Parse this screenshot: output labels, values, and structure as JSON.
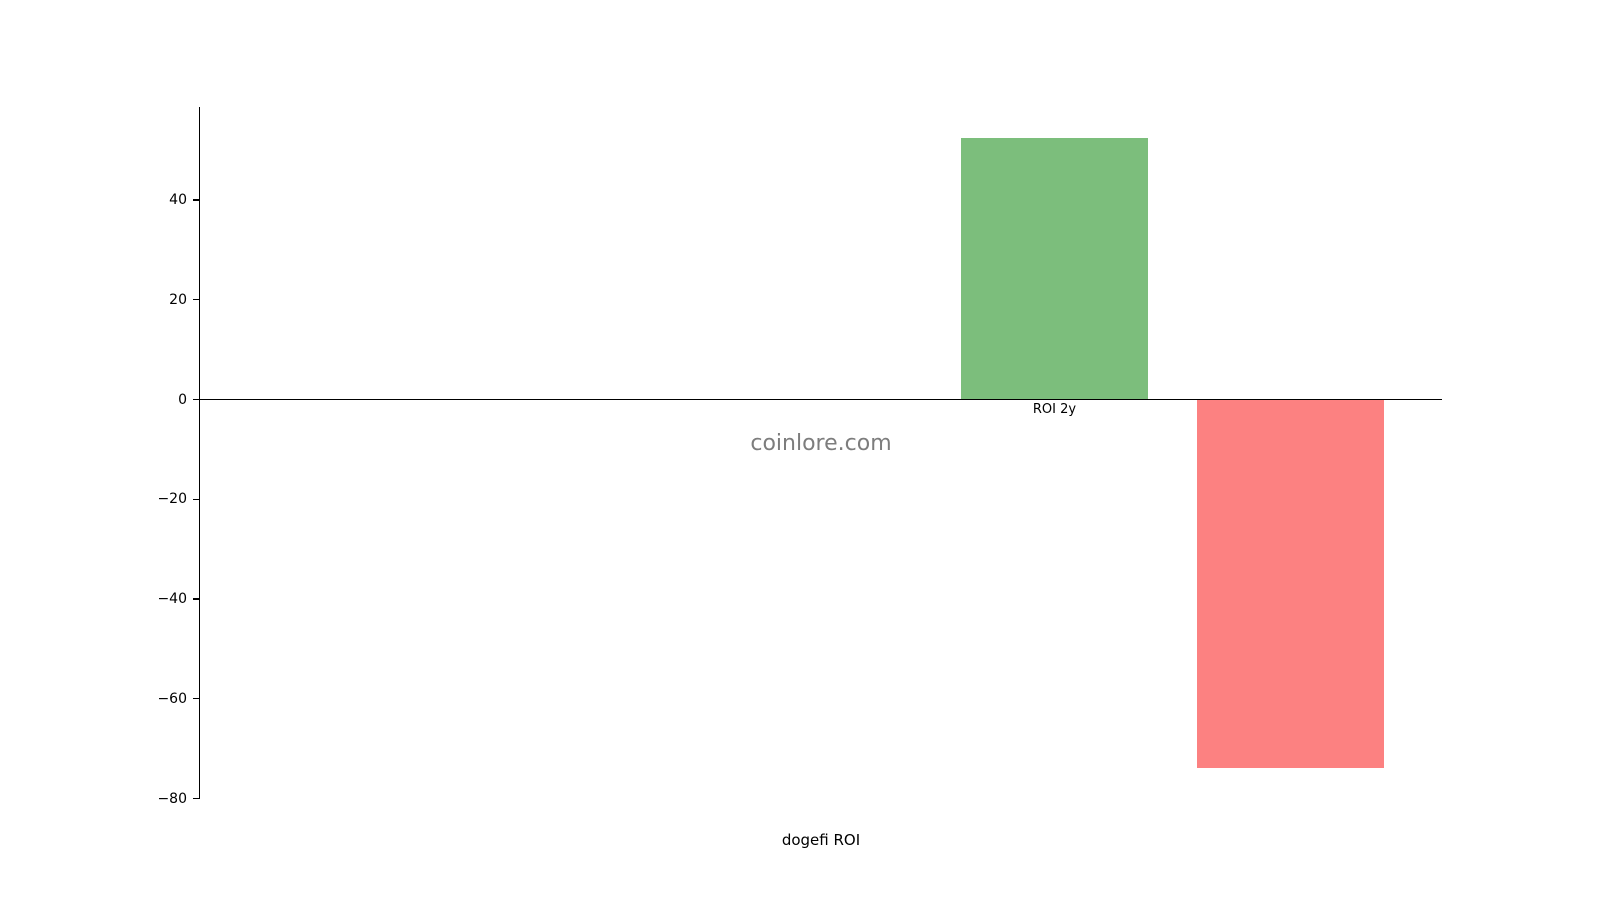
{
  "watermark": {
    "text": "coinlore.com",
    "color": "#7d7d7d"
  },
  "chart_data": {
    "type": "bar",
    "title": "",
    "xlabel": "dogefi ROI",
    "ylabel": "",
    "categories": [
      "ROI 2y",
      ""
    ],
    "values": [
      52.4,
      -73.9
    ],
    "bar_colors": [
      "#7cbe7c",
      "#fc8181"
    ],
    "positive_color": "#7cbe7c",
    "negative_color": "#fc8181",
    "yticks": [
      40,
      20,
      0,
      -20,
      -40,
      -60,
      -80
    ],
    "ytick_labels": [
      "40",
      "20",
      "0",
      "−20",
      "−40",
      "−60",
      "−80"
    ],
    "ylim": [
      -80,
      58.6
    ],
    "grid": false,
    "legend": null,
    "axis_color": "#000000",
    "background_color": "#ffffff"
  }
}
